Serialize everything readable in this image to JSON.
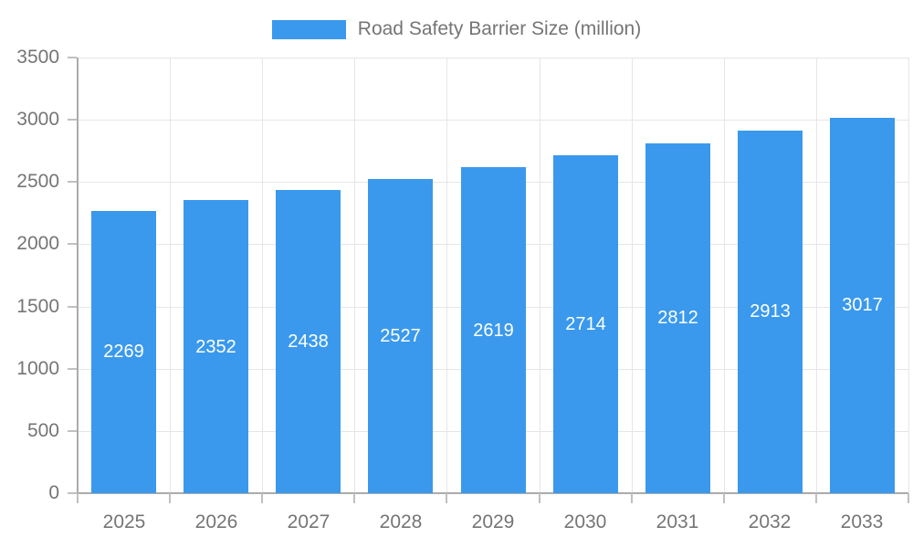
{
  "legend": {
    "label": "Road Safety Barrier Size (million)"
  },
  "colors": {
    "bar": "#3A99EC",
    "bar_label": "#FFFFFF",
    "grid": "#E6E6E6",
    "axis": "#ABABAB",
    "tick": "#C0C0C0",
    "text": "#757575",
    "background": "#FFFFFF"
  },
  "chart_data": {
    "type": "bar",
    "title": "Road Safety Barrier Size (million)",
    "categories": [
      "2025",
      "2026",
      "2027",
      "2028",
      "2029",
      "2030",
      "2031",
      "2032",
      "2033"
    ],
    "values": [
      2269,
      2352,
      2438,
      2527,
      2619,
      2714,
      2812,
      2913,
      3017
    ],
    "xlabel": "",
    "ylabel": "",
    "ylim": [
      0,
      3500
    ],
    "yticks": [
      0,
      500,
      1000,
      1500,
      2000,
      2500,
      3000,
      3500
    ],
    "grid": true,
    "legend_position": "top",
    "value_labels": "inside-center"
  }
}
